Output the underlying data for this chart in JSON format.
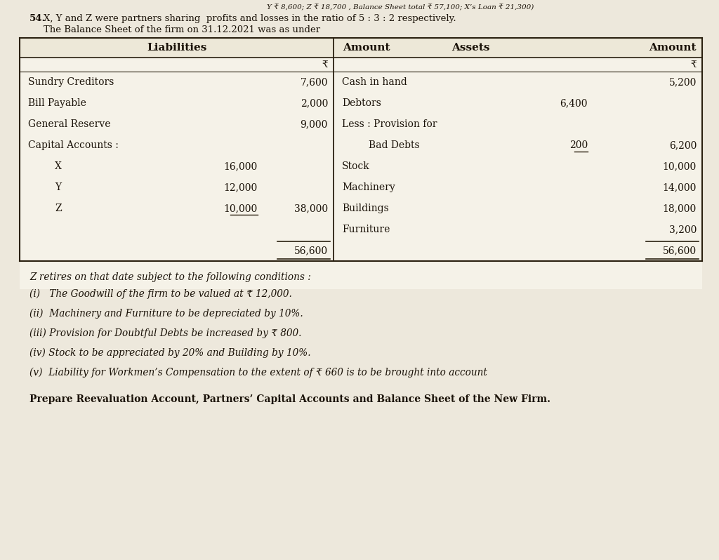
{
  "bg_color": "#ede8dc",
  "header_top_text": "Y ₹ 8,600; Z ₹ 18,700 , Balance Sheet total ₹ 57,100; X’s Loan ₹ 21,300)",
  "problem_number": "54.",
  "problem_statement_line1": "X, Y and Z were partners sharing  profits and losses in the ratio of 5 : 3 : 2 respectively.",
  "problem_statement_line2": "The Balance Sheet of the firm on 31.12.2021 was as under",
  "rupee_symbol": "₹",
  "conditions_header": "Z retires on that date subject to the following conditions :",
  "conditions": [
    "(i)   The Goodwill of the firm to be valued at ₹ 12,000.",
    "(ii)  Machinery and Furniture to be depreciated by 10%.",
    "(iii) Provision for Doubtful Debts be increased by ₹ 800.",
    "(iv) Stock to be appreciated by 20% and Building by 10%.",
    "(v)  Liability for Workmen’s Compensation to the extent of ₹ 660 is to be brought into account"
  ],
  "footer": "Prepare Reevaluation Account, Partners’ Capital Accounts and Balance Sheet of the New Firm.",
  "text_color": "#1a1208",
  "table_bg": "#f0ece2",
  "line_color": "#2a2010"
}
